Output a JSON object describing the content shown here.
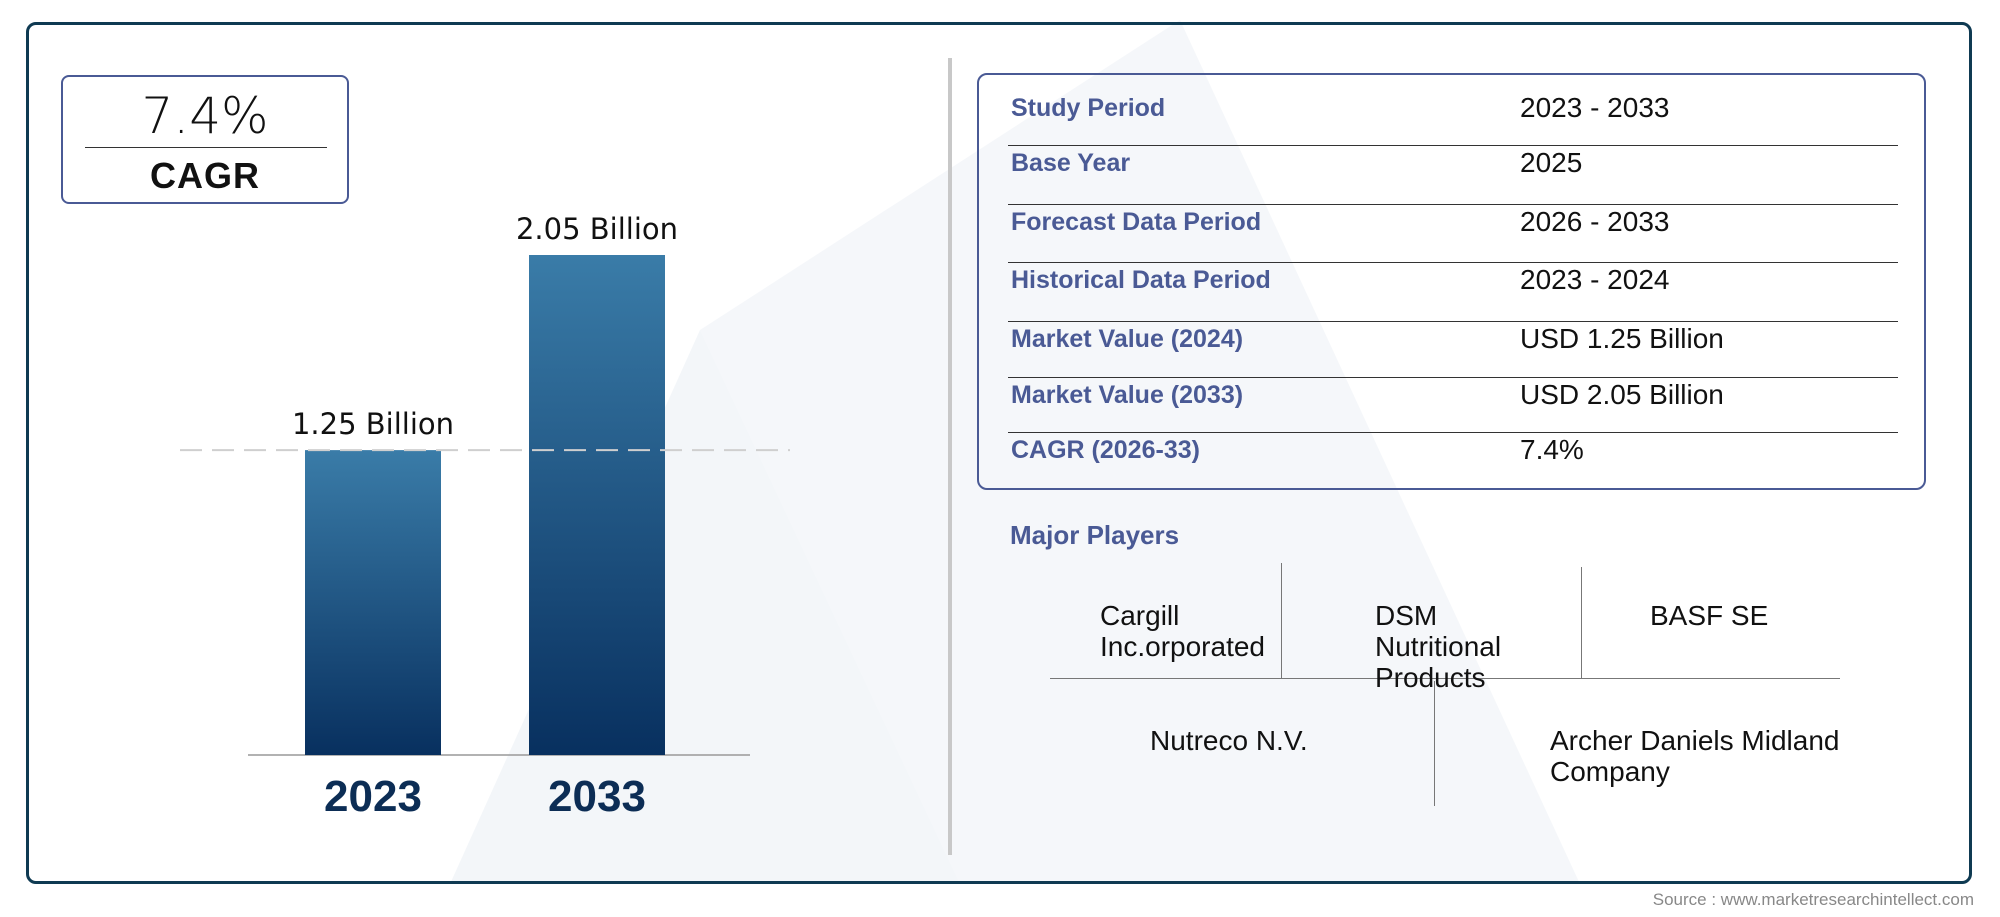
{
  "cagr_box": {
    "value": "7.4%",
    "label": "CAGR"
  },
  "chart_data": {
    "type": "bar",
    "categories": [
      "2023",
      "2033"
    ],
    "values": [
      1.25,
      2.05
    ],
    "data_labels": [
      "1.25 Billion",
      "2.05 Billion"
    ],
    "unit": "Billion",
    "bar_color_top": "#3a7ca8",
    "bar_color_bottom": "#08305f",
    "reference_line": "dashed at 2023 value"
  },
  "table": {
    "rows": [
      {
        "label": "Study Period",
        "value": "2023 - 2033"
      },
      {
        "label": "Base Year",
        "value": "2025"
      },
      {
        "label": "Forecast Data Period",
        "value": "2026 - 2033"
      },
      {
        "label": "Historical Data Period",
        "value": "2023 - 2024"
      },
      {
        "label": "Market Value (2024)",
        "value": "USD 1.25 Billion"
      },
      {
        "label": "Market Value (2033)",
        "value": "USD 2.05 Billion"
      },
      {
        "label": "CAGR (2026-33)",
        "value": "7.4%"
      }
    ]
  },
  "players": {
    "title": "Major Players",
    "items": [
      "Cargill Inc.orporated",
      "DSM Nutritional Products",
      "BASF SE",
      "Nutreco N.V.",
      "Archer Daniels Midland Company"
    ]
  },
  "source": "Source : www.marketresearchintellect.com",
  "colors": {
    "accent": "#4a5a95",
    "frame": "#0f3a52"
  }
}
